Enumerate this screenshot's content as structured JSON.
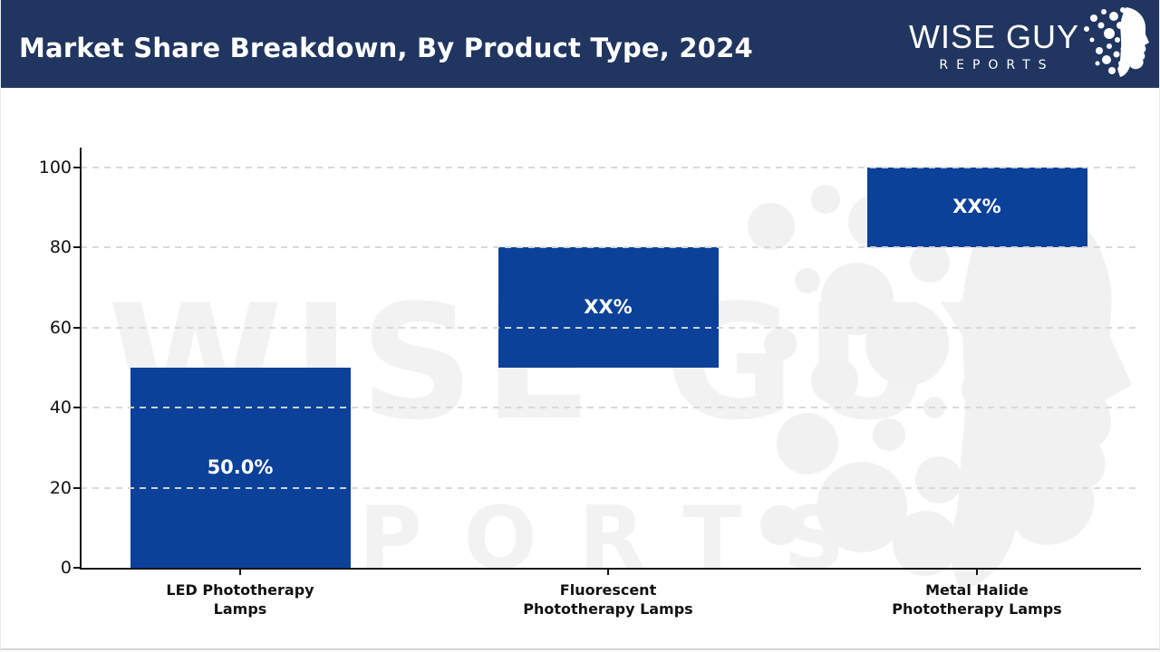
{
  "header": {
    "title": "Market Share Breakdown, By Product Type, 2024",
    "logo": {
      "primary": "WISE GUY",
      "secondary": "REPORTS"
    }
  },
  "watermark": {
    "primary": "WISE GUY",
    "secondary": "REPORTS"
  },
  "chart_data": {
    "type": "bar",
    "subtype": "waterfall",
    "title": "Market Share Breakdown, By Product Type, 2024",
    "categories": [
      "LED Phototherapy\nLamps",
      "Fluorescent\nPhototherapy Lamps",
      "Metal Halide\nPhototherapy Lamps"
    ],
    "segments": [
      {
        "category": "LED Phototherapy Lamps",
        "from": 0,
        "to": 50,
        "label": "50.0%"
      },
      {
        "category": "Fluorescent Phototherapy Lamps",
        "from": 50,
        "to": 80,
        "label": "XX%"
      },
      {
        "category": "Metal Halide Phototherapy Lamps",
        "from": 80,
        "to": 100,
        "label": "XX%"
      }
    ],
    "y_ticks": [
      0,
      20,
      40,
      60,
      80,
      100
    ],
    "ylim": [
      0,
      105
    ],
    "xlabel": "",
    "ylabel": "",
    "grid": "dashed-horizontal",
    "legend": "none",
    "bar_color": "#0b4199",
    "value_label_color": "#ffffff"
  },
  "colors": {
    "header_bg": "#20355f",
    "bar": "#0b4199",
    "grid": "#dddddd",
    "axis": "#151515",
    "watermark": "#f2f2f2"
  }
}
